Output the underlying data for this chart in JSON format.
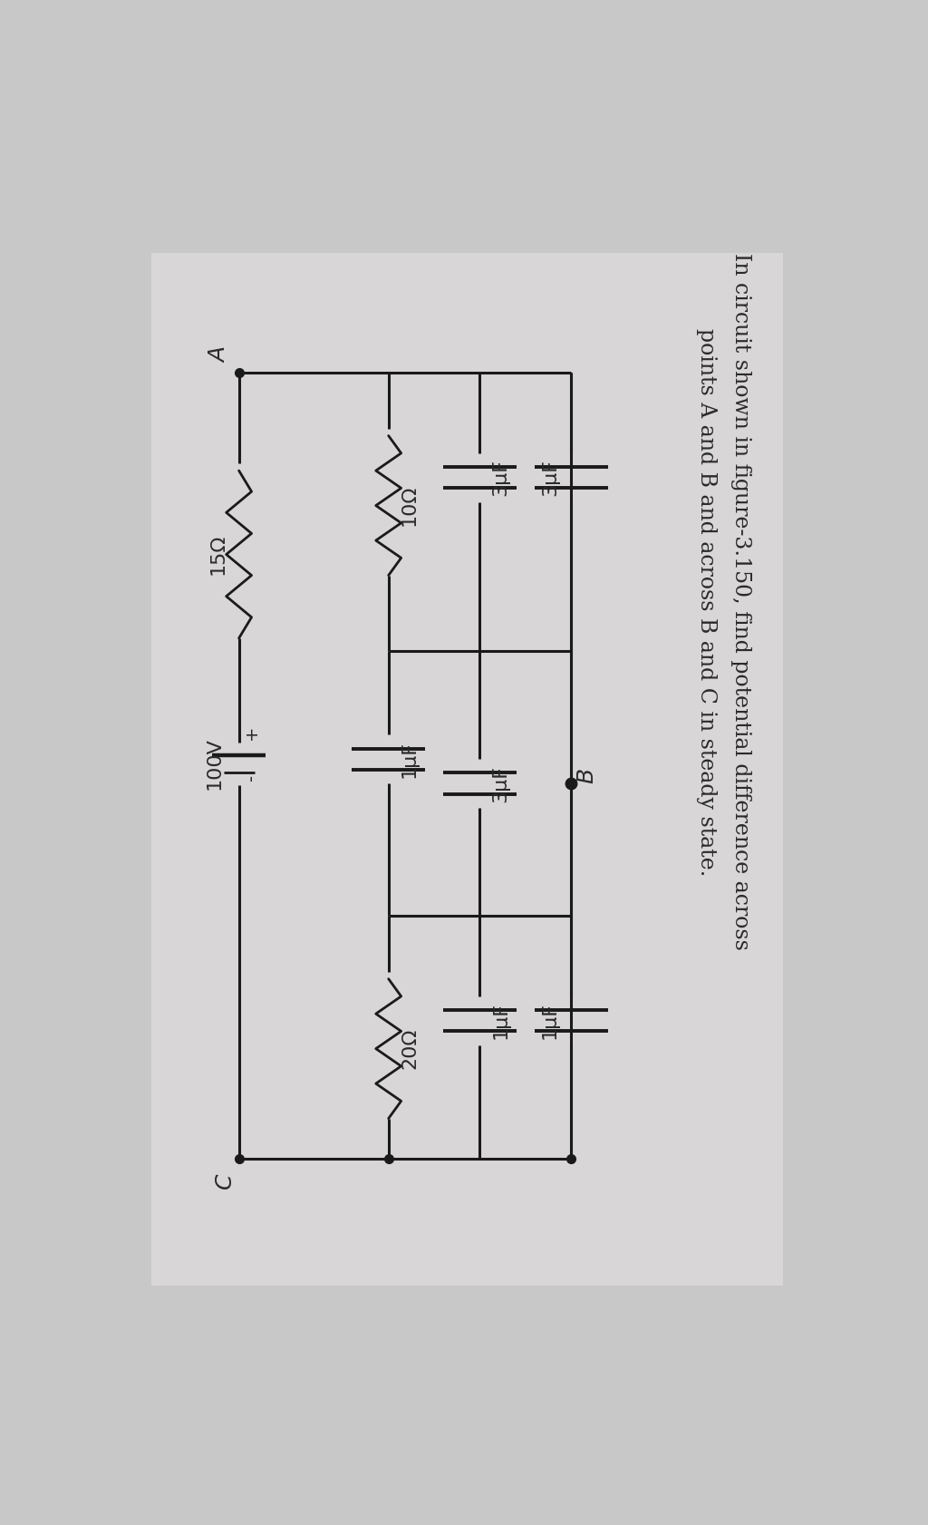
{
  "bg_color": "#c8c8c8",
  "paper_color": "#d8d6d6",
  "text_color": "#2a2a2a",
  "line_color": "#1a1a1a",
  "line_width": 2.2,
  "label_A": "A",
  "label_B": "B",
  "label_C": "C",
  "resistor_15": "15Ω",
  "resistor_10": "10Ω",
  "resistor_20": "20Ω",
  "cap_3uF_1": "3μF",
  "cap_3uF_2": "3μF",
  "cap_1uF_1": "1μF",
  "cap_1uF_2": "1μF",
  "cap_1uF_3": "1μF",
  "battery_label": "100V",
  "battery_plus": "+",
  "battery_minus": "-",
  "title_line1": "In circuit shown in figure-3.150, find potential difference across",
  "title_line2": "points A and B and across B and C in steady state.",
  "font_size_text": 17,
  "font_size_label": 18,
  "font_size_component": 16
}
